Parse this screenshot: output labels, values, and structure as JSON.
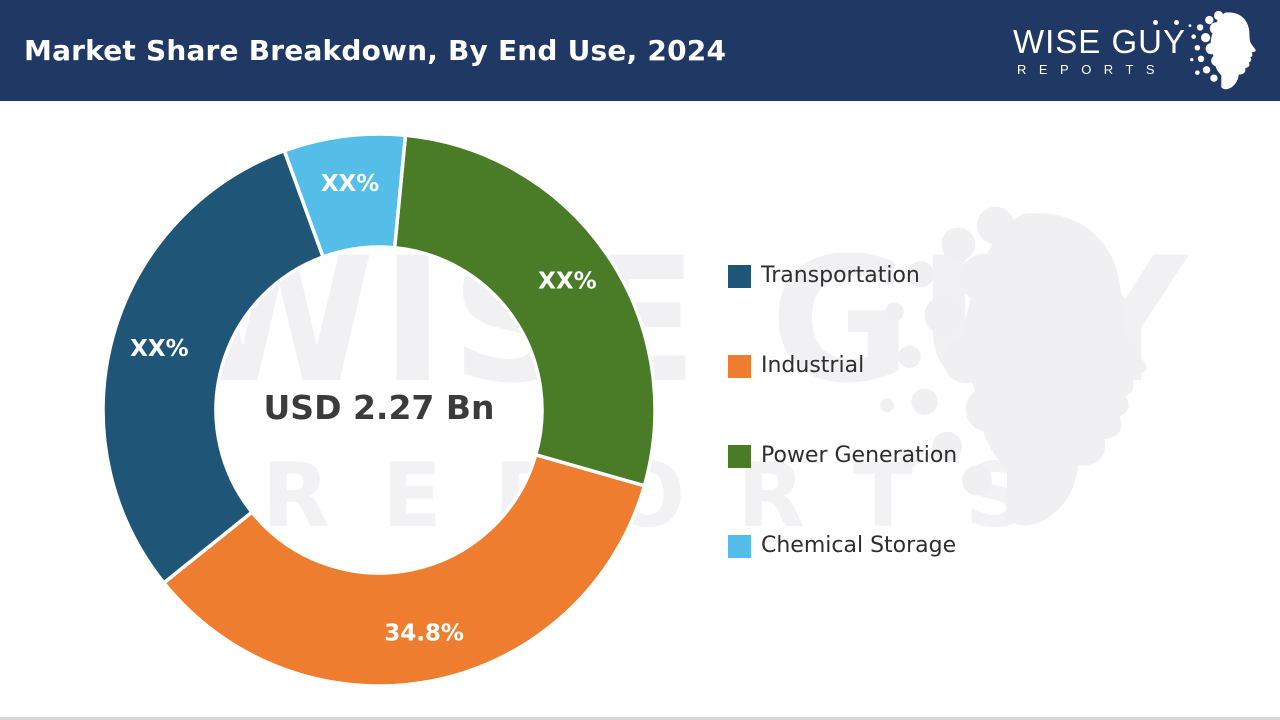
{
  "header": {
    "title": "Market Share Breakdown, By End Use, 2024",
    "bg_color": "#203864",
    "logo": {
      "line1": "WISE GUY",
      "line2": "REPORTS"
    }
  },
  "chart_data": {
    "type": "pie",
    "subtype": "donut",
    "title": "Market Share Breakdown, By End Use, 2024",
    "center_label": "USD 2.27 Bn",
    "start_angle_deg": 5.5,
    "inner_radius_ratio": 0.59,
    "legend_position": "right",
    "segments": [
      {
        "name": "Power Generation",
        "value_pct": 27.9,
        "label": "XX%",
        "color": "#4A7C28"
      },
      {
        "name": "Industrial",
        "value_pct": 34.8,
        "label": "34.8%",
        "color": "#EE7D2F"
      },
      {
        "name": "Transportation",
        "value_pct": 30.2,
        "label": "XX%",
        "color": "#1F5577"
      },
      {
        "name": "Chemical Storage",
        "value_pct": 7.1,
        "label": "XX%",
        "color": "#55BEE8"
      }
    ]
  },
  "legend": {
    "items": [
      {
        "label": "Transportation",
        "color": "#1F5577"
      },
      {
        "label": "Industrial",
        "color": "#EE7D2F"
      },
      {
        "label": "Power Generation",
        "color": "#4A7C28"
      },
      {
        "label": "Chemical Storage",
        "color": "#55BEE8"
      }
    ]
  },
  "watermark": {
    "line1": "WISE GUY",
    "line2": "REPORTS"
  }
}
